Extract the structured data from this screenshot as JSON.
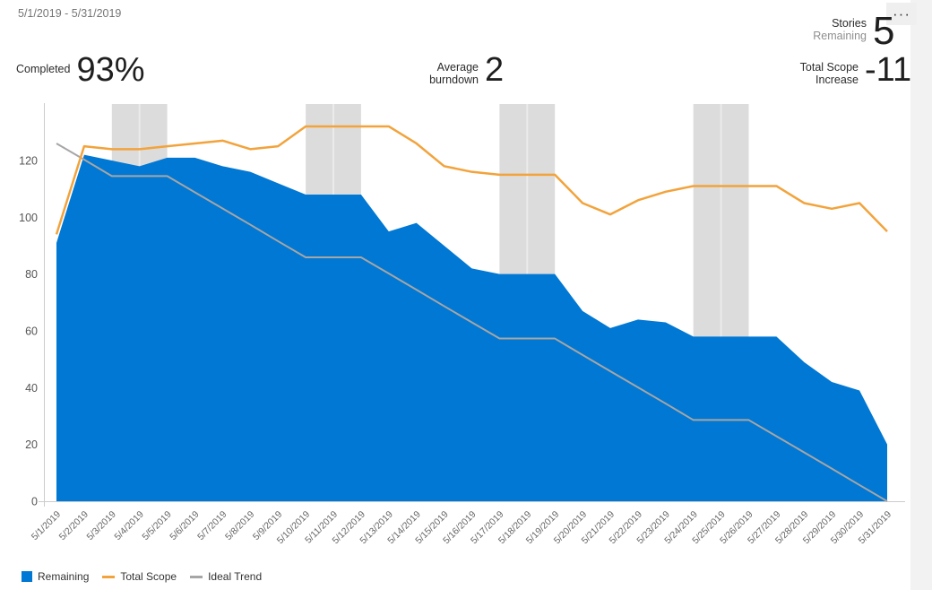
{
  "widget": {
    "date_range": "5/1/2019 - 5/31/2019",
    "menu_label": "···"
  },
  "kpis": {
    "completed": {
      "label": "Completed",
      "value": "93%"
    },
    "average_burndown": {
      "label_line1": "Average",
      "label_line2": "burndown",
      "value": "2"
    },
    "total_scope_increase": {
      "label_line1": "Total Scope",
      "label_line2": "Increase",
      "value": "-11"
    },
    "stories_remaining": {
      "label_line1": "Stories",
      "label_line2": "Remaining",
      "value": "5"
    }
  },
  "chart_data": {
    "type": "area",
    "x": [
      "5/1/2019",
      "5/2/2019",
      "5/3/2019",
      "5/4/2019",
      "5/5/2019",
      "5/6/2019",
      "5/7/2019",
      "5/8/2019",
      "5/9/2019",
      "5/10/2019",
      "5/11/2019",
      "5/12/2019",
      "5/13/2019",
      "5/14/2019",
      "5/15/2019",
      "5/16/2019",
      "5/17/2019",
      "5/18/2019",
      "5/19/2019",
      "5/20/2019",
      "5/21/2019",
      "5/22/2019",
      "5/23/2019",
      "5/24/2019",
      "5/25/2019",
      "5/26/2019",
      "5/27/2019",
      "5/28/2019",
      "5/29/2019",
      "5/30/2019",
      "5/31/2019"
    ],
    "series": [
      {
        "name": "Remaining",
        "type": "area",
        "color": "#0078d4",
        "values": [
          91,
          122,
          120,
          118,
          121,
          121,
          118,
          116,
          112,
          108,
          108,
          108,
          95,
          98,
          90,
          82,
          80,
          80,
          80,
          67,
          61,
          64,
          63,
          58,
          58,
          58,
          58,
          49,
          42,
          39,
          20
        ]
      },
      {
        "name": "Total Scope",
        "type": "line",
        "color": "#f2a33c",
        "values": [
          94,
          125,
          124,
          124,
          125,
          126,
          127,
          124,
          125,
          132,
          132,
          132,
          132,
          126,
          118,
          116,
          115,
          115,
          115,
          105,
          101,
          106,
          109,
          111,
          111,
          111,
          111,
          105,
          103,
          105,
          95
        ]
      },
      {
        "name": "Ideal Trend",
        "type": "line",
        "color": "#a6a6a6",
        "values": [
          126,
          120.3,
          114.5,
          114.5,
          114.5,
          108.8,
          103.1,
          97.4,
          91.6,
          85.9,
          85.9,
          85.9,
          80.2,
          74.5,
          68.7,
          63,
          57.3,
          57.3,
          57.3,
          51.5,
          45.8,
          40.1,
          34.4,
          28.6,
          28.6,
          28.6,
          22.9,
          17.2,
          11.5,
          5.7,
          0
        ]
      }
    ],
    "yticks": [
      0,
      20,
      40,
      60,
      80,
      100,
      120
    ],
    "ylim": [
      0,
      140
    ],
    "weekend_bands": [
      [
        2,
        4
      ],
      [
        9,
        11
      ],
      [
        16,
        18
      ],
      [
        23,
        25
      ]
    ],
    "band_color": "#dcdcdc",
    "band_divider_color": "#ebebeb",
    "axis_color": "#cccccc",
    "tick_label_color": "#666666",
    "grid": "off",
    "legend_position": "bottom-left"
  }
}
